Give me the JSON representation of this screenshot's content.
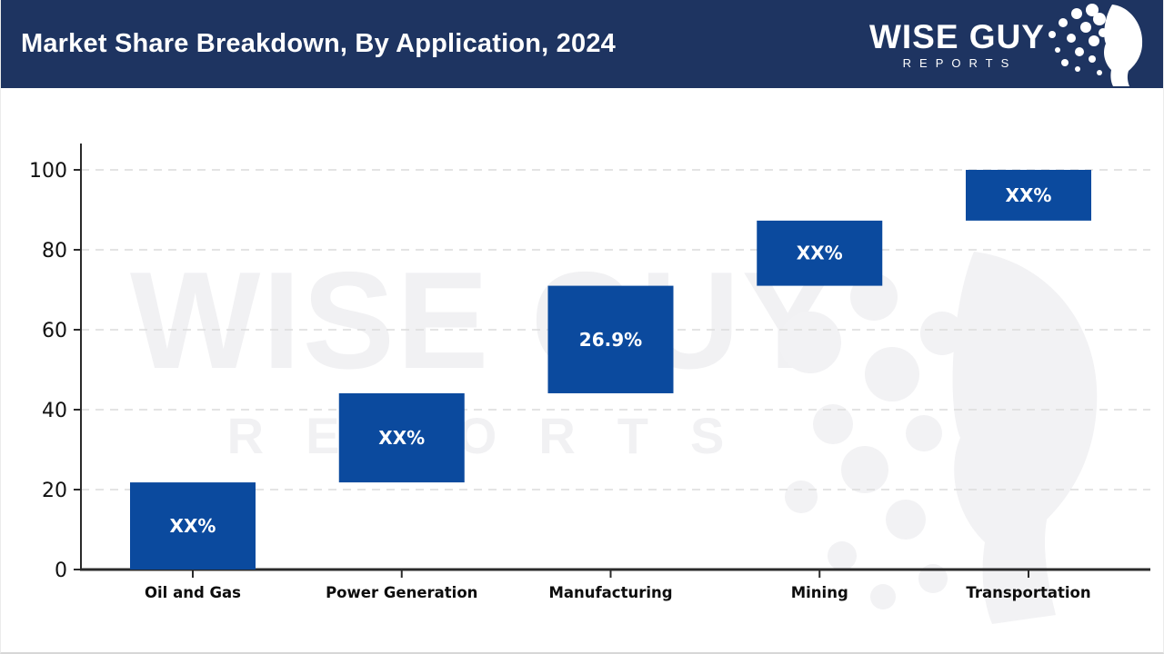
{
  "header": {
    "title": "Market Share Breakdown, By Application, 2024"
  },
  "logo": {
    "line1": "WISE GUY",
    "line2": "REPORTS"
  },
  "watermark": {
    "line1": "WISE GUY",
    "line2": "REPORTS"
  },
  "colors": {
    "header_bg": "#1e3461",
    "bar": "#0b4a9e",
    "bar_label": "#ffffff",
    "gridline": "#dcdcdc",
    "axis": "#2b2b2b",
    "tick_label": "#111111",
    "category_label": "#0d0d0d",
    "watermark": "#f1f1f3"
  },
  "chart_data": {
    "type": "bar",
    "subtype": "waterfall-stacked",
    "title": "Market Share Breakdown, By Application, 2024",
    "categories": [
      "Oil and Gas",
      "Power Generation",
      "Manufacturing",
      "Mining",
      "Transportation"
    ],
    "segments": [
      {
        "category": "Oil and Gas",
        "start": 0,
        "end": 21.8,
        "label": "XX%"
      },
      {
        "category": "Power Generation",
        "start": 21.8,
        "end": 44.1,
        "label": "XX%"
      },
      {
        "category": "Manufacturing",
        "start": 44.1,
        "end": 71.0,
        "label": "26.9%"
      },
      {
        "category": "Mining",
        "start": 71.0,
        "end": 87.3,
        "label": "XX%"
      },
      {
        "category": "Transportation",
        "start": 87.3,
        "end": 100.0,
        "label": "XX%"
      }
    ],
    "yticks": [
      0,
      20,
      40,
      60,
      80,
      100
    ],
    "ylim": [
      0,
      106
    ],
    "xlabel": "",
    "ylabel": "",
    "grid": "horizontal-dashed",
    "legend": "none",
    "bar_color": "#0b4a9e",
    "value_label_color": "#ffffff"
  }
}
